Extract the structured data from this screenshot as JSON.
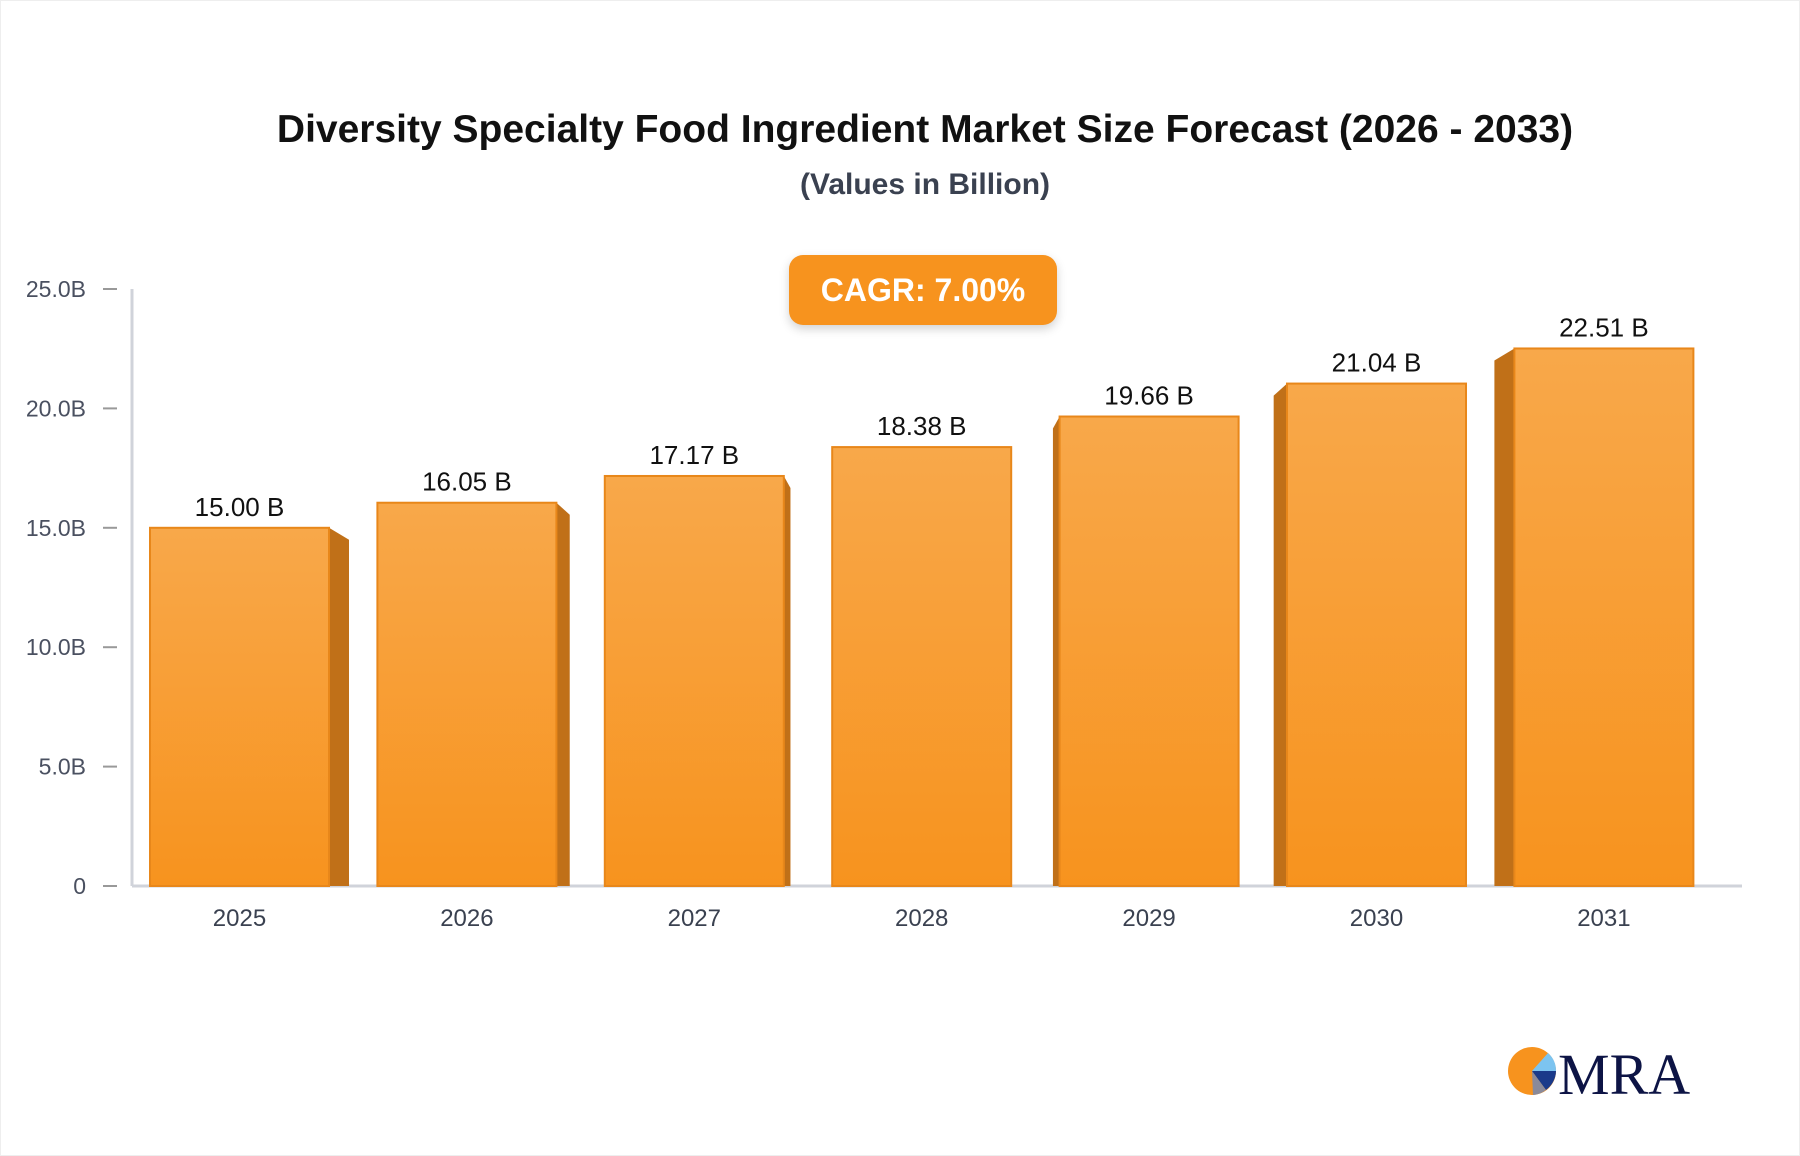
{
  "chart_data": {
    "type": "bar",
    "title": "Diversity Specialty Food Ingredient Market Size Forecast (2026 - 2033)",
    "subtitle": "(Values in Billion)",
    "annotation": "CAGR: 7.00%",
    "categories": [
      "2025",
      "2026",
      "2027",
      "2028",
      "2029",
      "2030",
      "2031"
    ],
    "values": [
      15.0,
      16.05,
      17.17,
      18.38,
      19.66,
      21.04,
      22.51
    ],
    "data_labels": [
      "15.00 B",
      "16.05 B",
      "17.17 B",
      "18.38 B",
      "19.66 B",
      "21.04 B",
      "22.51 B"
    ],
    "ylim": [
      0,
      25
    ],
    "yticks": [
      0,
      5,
      10,
      15,
      20,
      25
    ],
    "ytick_labels": [
      "0",
      "5.0B",
      "10.0B",
      "15.0B",
      "20.0B",
      "25.0B"
    ],
    "xlabel": "",
    "ylabel": "",
    "grid": false,
    "colors": {
      "bar_top": "#f8a84a",
      "bar_bottom": "#f7931e",
      "bar_side": "#c07018",
      "bar_edge": "#e8871a",
      "accent": "#f7931e"
    }
  },
  "logo": {
    "text": "MRA"
  }
}
